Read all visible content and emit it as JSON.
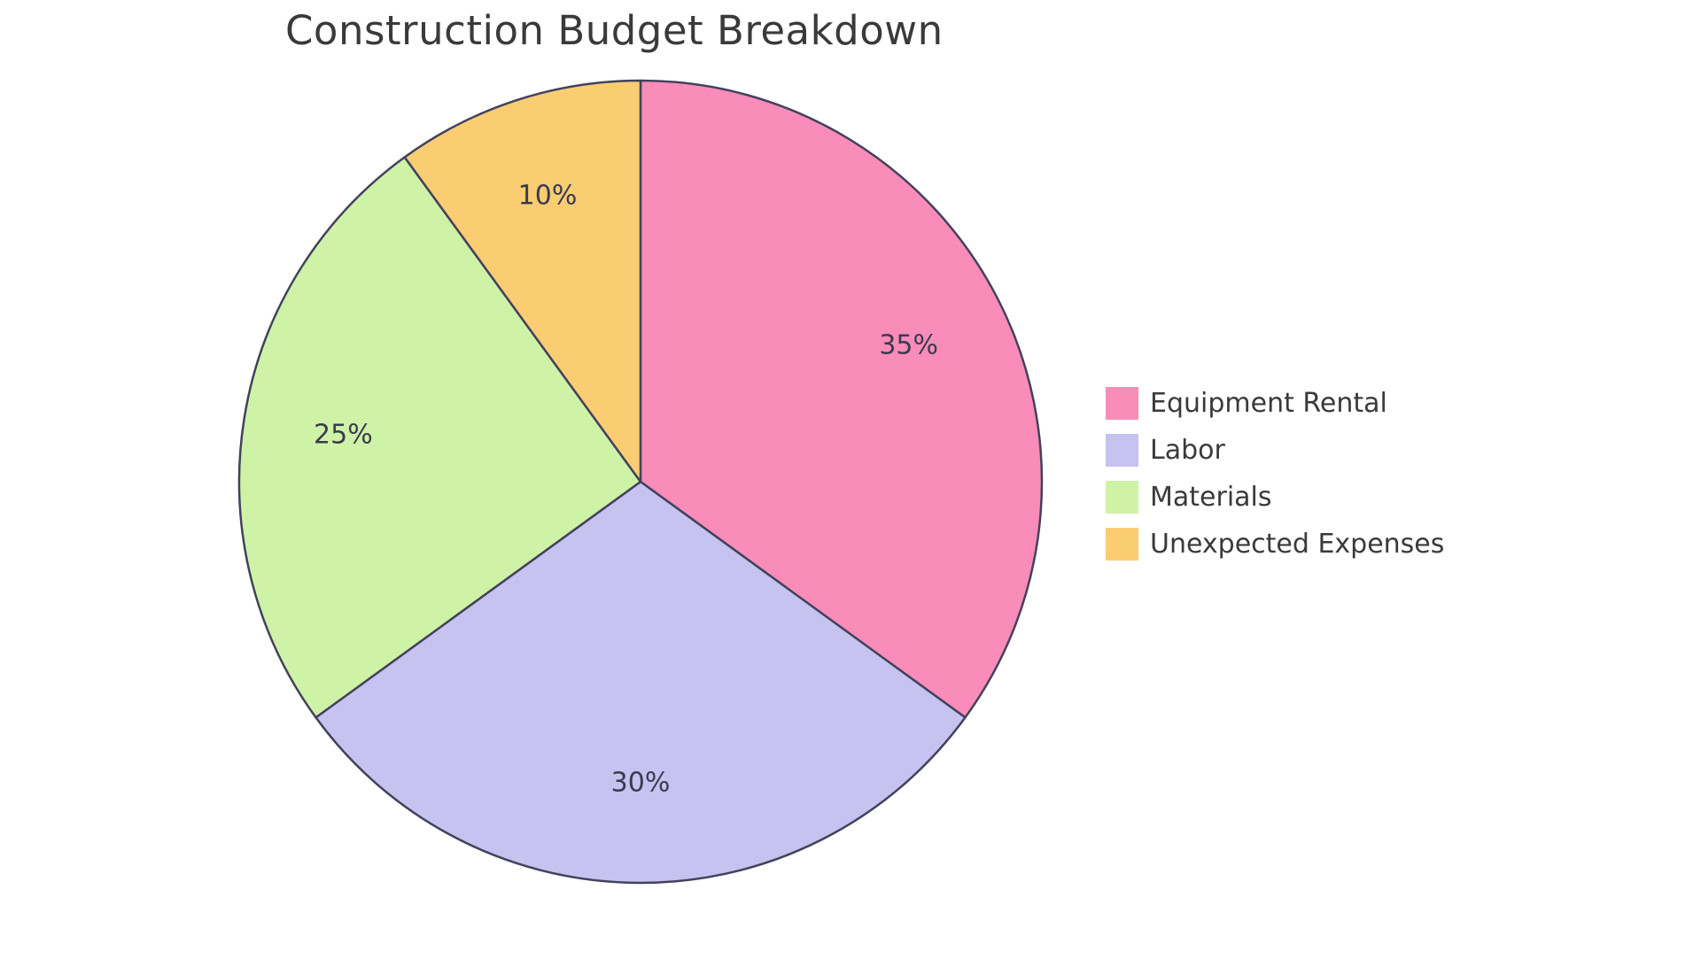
{
  "chart_data": {
    "type": "pie",
    "title": "Construction Budget Breakdown",
    "legend_position": "right",
    "direction": "clockwise",
    "start_angle_deg": 0,
    "stroke_color": "#42425c",
    "label_color": "#3b3b4f",
    "slices": [
      {
        "label": "Equipment Rental",
        "value": 35,
        "display": "35%",
        "color": "#f98cb8"
      },
      {
        "label": "Labor",
        "value": 30,
        "display": "30%",
        "color": "#c6c3f1"
      },
      {
        "label": "Materials",
        "value": 25,
        "display": "25%",
        "color": "#cff3a6"
      },
      {
        "label": "Unexpected Expenses",
        "value": 10,
        "display": "10%",
        "color": "#facd73"
      }
    ]
  }
}
